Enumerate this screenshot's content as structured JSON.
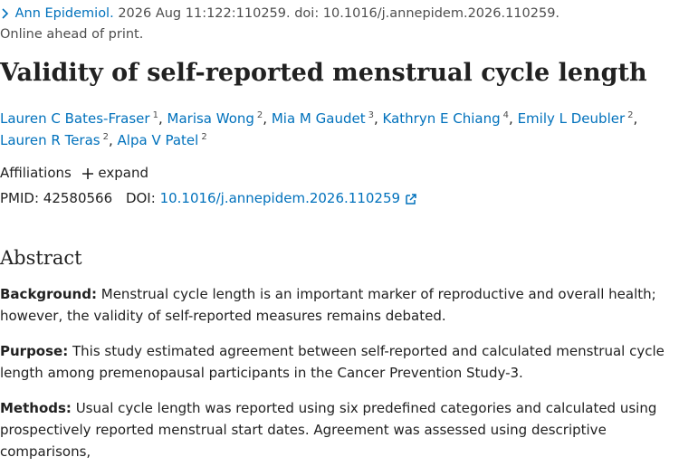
{
  "citation": {
    "journal": "Ann Epidemiol.",
    "details": "2026 Aug 11:122:110259. doi: 10.1016/j.annepidem.2026.110259."
  },
  "status": "Online ahead of print.",
  "title": "Validity of self-reported menstrual cycle length",
  "author_separator": ",",
  "authors": [
    {
      "name": "Lauren C Bates-Fraser",
      "affiliation": "1"
    },
    {
      "name": "Marisa Wong",
      "affiliation": "2"
    },
    {
      "name": "Mia M Gaudet",
      "affiliation": "3"
    },
    {
      "name": "Kathryn E Chiang",
      "affiliation": "4"
    },
    {
      "name": "Emily L Deubler",
      "affiliation": "2"
    },
    {
      "name": "Lauren R Teras",
      "affiliation": "2"
    },
    {
      "name": "Alpa V Patel",
      "affiliation": "2"
    }
  ],
  "affiliations": {
    "label": "Affiliations",
    "toggle": "expand"
  },
  "identifiers": {
    "pmid_label": "PMID:",
    "pmid": "42580566",
    "doi_label": "DOI:",
    "doi": "10.1016/j.annepidem.2026.110259"
  },
  "abstract": {
    "heading": "Abstract",
    "sections": [
      {
        "label": "Background:",
        "text": "Menstrual cycle length is an important marker of reproductive and overall health; however, the validity of self-reported measures remains debated."
      },
      {
        "label": "Purpose:",
        "text": "This study estimated agreement between self-reported and calculated menstrual cycle length among premenopausal participants in the Cancer Prevention Study-3."
      },
      {
        "label": "Methods:",
        "text": "Usual cycle length was reported using six predefined categories and calculated using prospectively reported menstrual start dates. Agreement was assessed using descriptive comparisons,"
      }
    ]
  }
}
